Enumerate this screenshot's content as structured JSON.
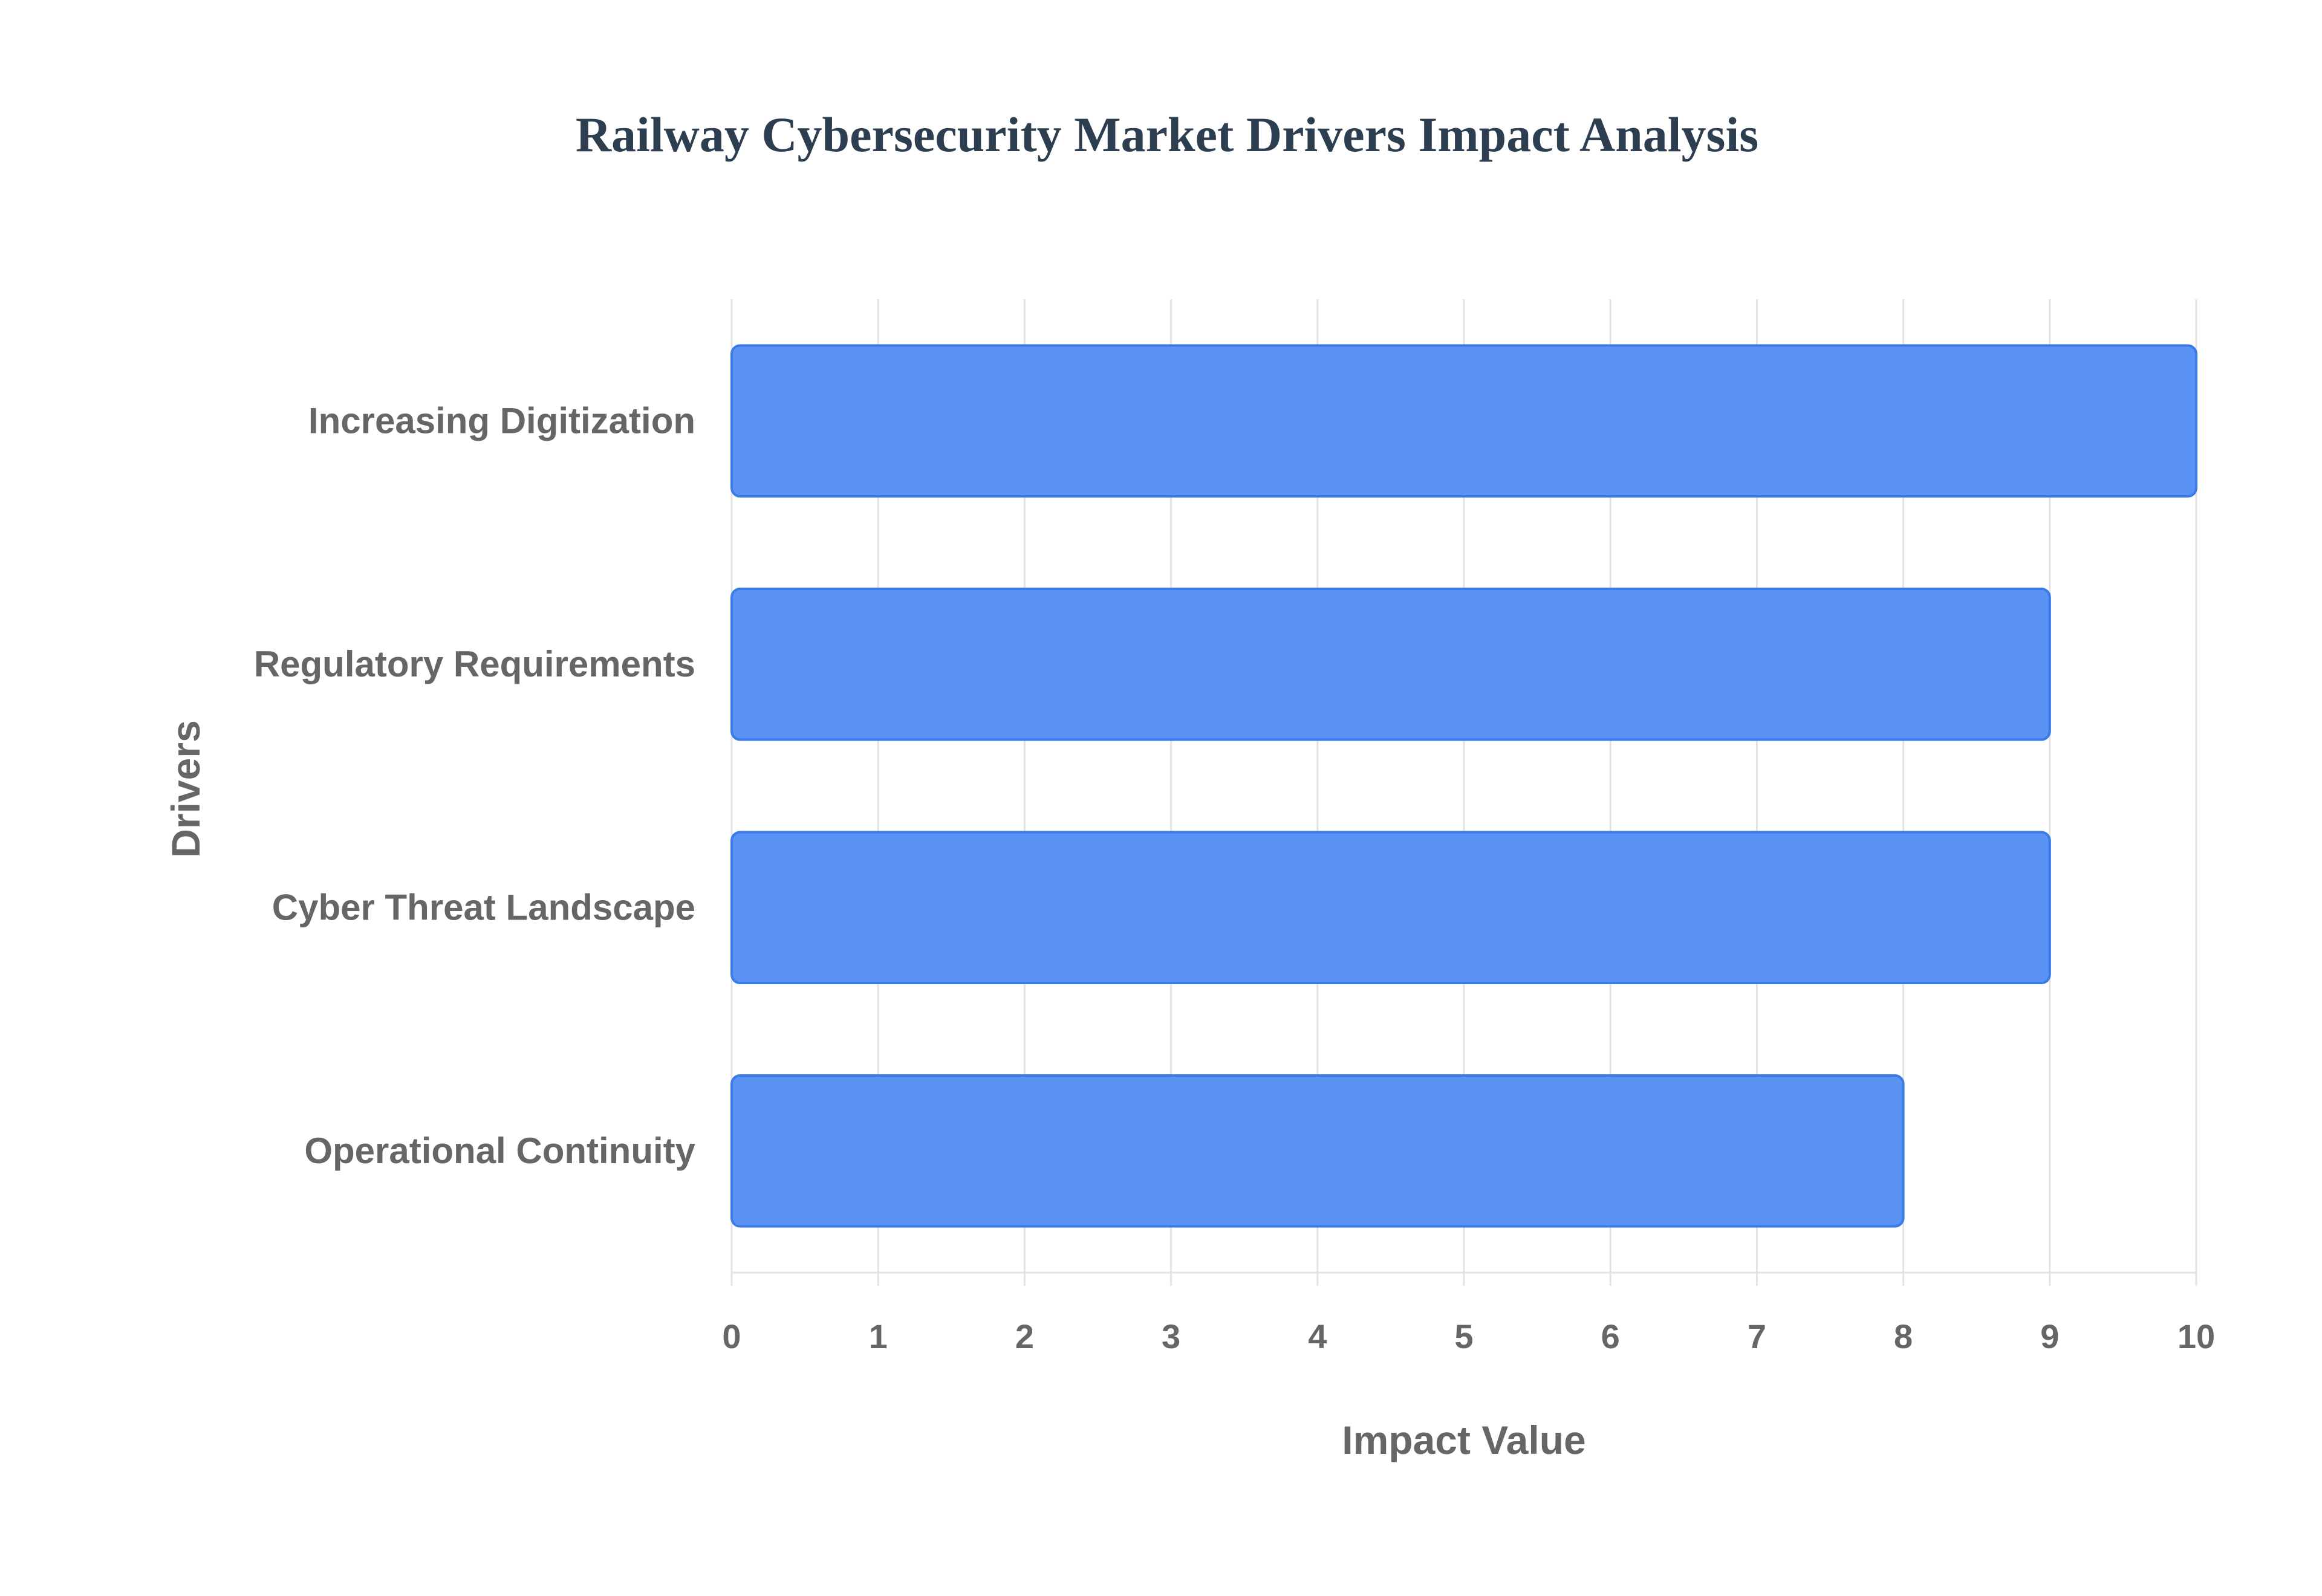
{
  "chart_data": {
    "type": "bar",
    "orientation": "horizontal",
    "title": "Railway Cybersecurity Market Drivers Impact Analysis",
    "xlabel": "Impact Value",
    "ylabel": "Drivers",
    "categories": [
      "Increasing Digitization",
      "Regulatory Requirements",
      "Cyber Threat Landscape",
      "Operational Continuity"
    ],
    "values": [
      10,
      9,
      9,
      8
    ],
    "xlim": [
      0,
      10
    ],
    "xticks": [
      "0",
      "1",
      "2",
      "3",
      "4",
      "5",
      "6",
      "7",
      "8",
      "9",
      "10"
    ],
    "grid": true,
    "legend": "none",
    "colors": {
      "bar_fill": "#5b93f5",
      "bar_stroke": "#3b7be8",
      "title": "#2c3e50",
      "label": "#666666",
      "grid": "#e3e3e3"
    }
  }
}
